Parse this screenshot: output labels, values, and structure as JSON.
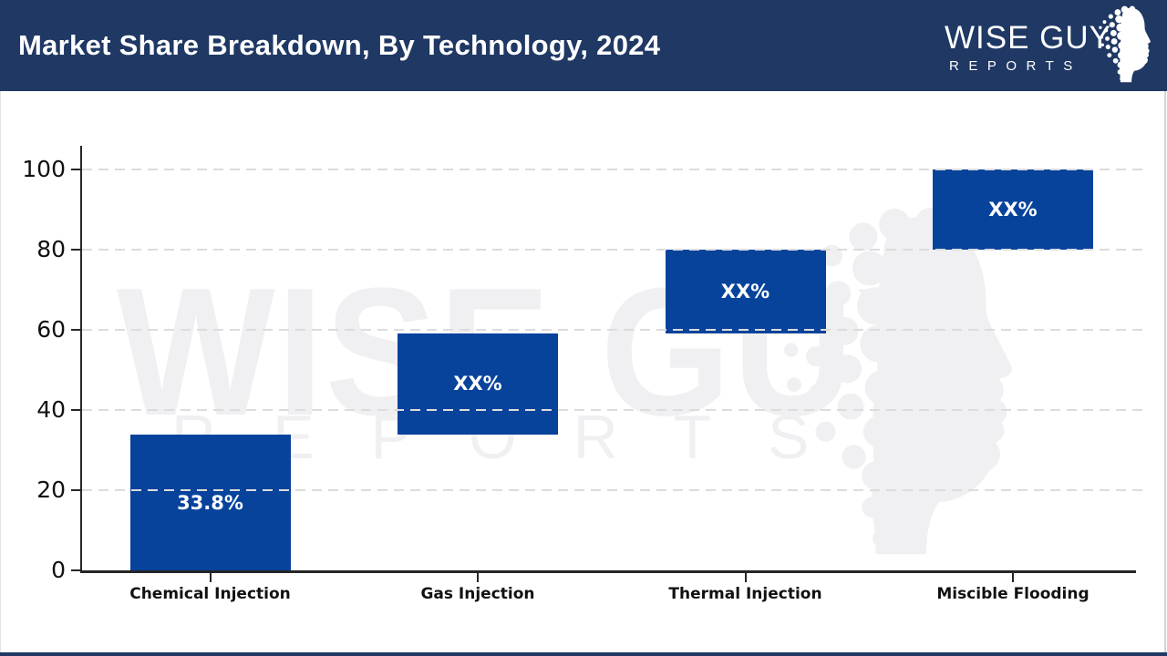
{
  "header": {
    "title": "Market Share Breakdown, By Technology, 2024",
    "logo": {
      "wordmark": "WISE GUY",
      "sub": "REPORTS"
    }
  },
  "watermark": {
    "wordmark": "WISE GUY",
    "sub": "REPORTS"
  },
  "chart_data": {
    "type": "bar",
    "subtype": "waterfall",
    "title": "Market Share Breakdown, By Technology, 2024",
    "categories": [
      "Chemical Injection",
      "Gas Injection",
      "Thermal Injection",
      "Miscible Flooding"
    ],
    "bars": [
      {
        "category": "Chemical Injection",
        "start": 0,
        "end": 33.8,
        "label": "33.8%"
      },
      {
        "category": "Gas Injection",
        "start": 33.8,
        "end": 59.2,
        "label": "XX%"
      },
      {
        "category": "Thermal Injection",
        "start": 59.2,
        "end": 80.1,
        "label": "XX%"
      },
      {
        "category": "Miscible Flooding",
        "start": 80.1,
        "end": 100,
        "label": "XX%"
      }
    ],
    "xlabel": "",
    "ylabel": "",
    "ylim": [
      0,
      100
    ],
    "yticks": [
      0,
      20,
      40,
      60,
      80,
      100
    ],
    "grid": "horizontal-dashed",
    "legend": "none"
  },
  "colors": {
    "header_bg": "#1f3864",
    "bar": "#07439b",
    "grid": "#dcdcdc",
    "axis": "#262626",
    "watermark": "#f0f0f3",
    "value_label": "#ffffff",
    "tick_label": "#111111"
  }
}
